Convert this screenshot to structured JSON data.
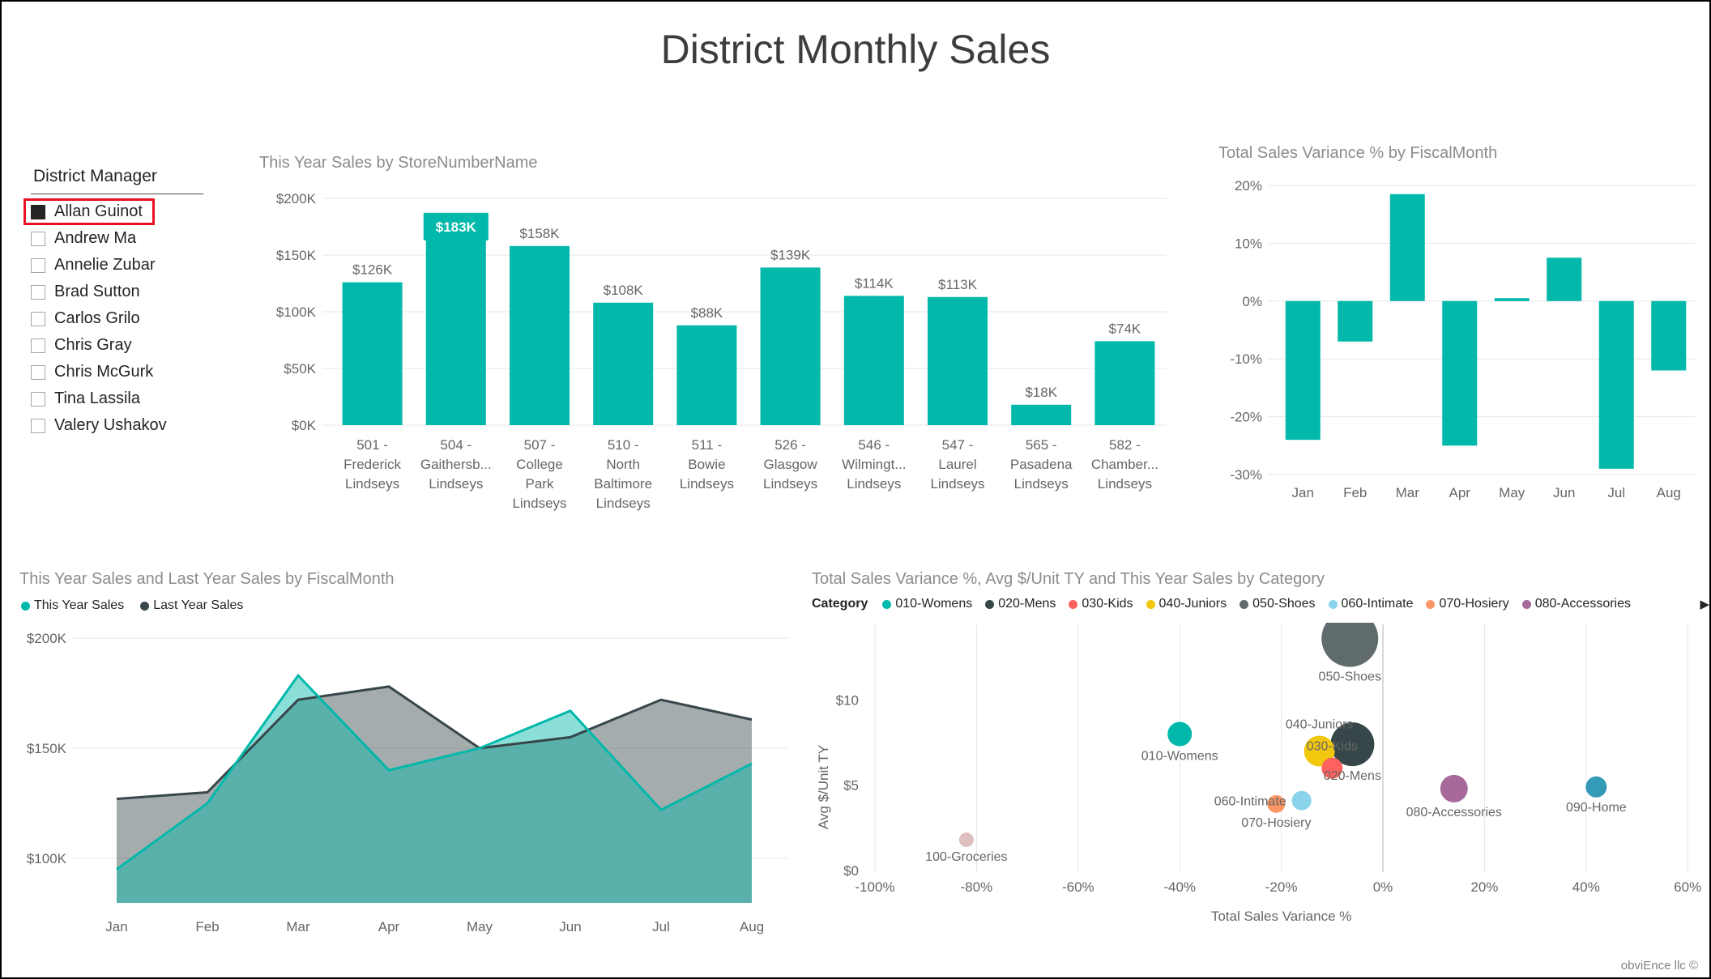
{
  "page": {
    "title": "District Monthly Sales",
    "credit": "obviEnce llc ©"
  },
  "colors": {
    "selection_red": "#E81123",
    "accent_teal": "#01B8AA",
    "dark_gray": "#374649"
  },
  "slicer": {
    "title": "District Manager",
    "items": [
      {
        "label": "Allan Guinot",
        "checked": true,
        "highlighted": true
      },
      {
        "label": "Andrew Ma",
        "checked": false
      },
      {
        "label": "Annelie Zubar",
        "checked": false
      },
      {
        "label": "Brad Sutton",
        "checked": false
      },
      {
        "label": "Carlos Grilo",
        "checked": false
      },
      {
        "label": "Chris Gray",
        "checked": false
      },
      {
        "label": "Chris McGurk",
        "checked": false
      },
      {
        "label": "Tina Lassila",
        "checked": false
      },
      {
        "label": "Valery Ushakov",
        "checked": false
      }
    ]
  },
  "chart_data": [
    {
      "id": "this-year-sales-by-store",
      "type": "bar",
      "title": "This Year Sales by StoreNumberName",
      "categories": [
        [
          "501 -",
          "Frederick",
          "Lindseys"
        ],
        [
          "504 -",
          "Gaithersb...",
          "Lindseys"
        ],
        [
          "507 -",
          "College",
          "Park",
          "Lindseys"
        ],
        [
          "510 -",
          "North",
          "Baltimore",
          "Lindseys"
        ],
        [
          "511 -",
          "Bowie",
          "Lindseys"
        ],
        [
          "526 -",
          "Glasgow",
          "Lindseys"
        ],
        [
          "546 -",
          "Wilmingt...",
          "Lindseys"
        ],
        [
          "547 -",
          "Laurel",
          "Lindseys"
        ],
        [
          "565 -",
          "Pasadena",
          "Lindseys"
        ],
        [
          "582 -",
          "Chamber...",
          "Lindseys"
        ]
      ],
      "values": [
        126,
        183,
        158,
        108,
        88,
        139,
        114,
        113,
        18,
        74
      ],
      "data_labels": [
        "$126K",
        "$183K",
        "$158K",
        "$108K",
        "$88K",
        "$139K",
        "$114K",
        "$113K",
        "$18K",
        "$74K"
      ],
      "highlight_index": 1,
      "ylim": [
        0,
        200
      ],
      "yticks": [
        0,
        50,
        100,
        150,
        200
      ],
      "ytick_labels": [
        "$0K",
        "$50K",
        "$100K",
        "$150K",
        "$200K"
      ],
      "bar_color": "#01B8AA"
    },
    {
      "id": "total-sales-variance-by-fiscalmonth",
      "type": "bar",
      "title": "Total Sales Variance % by FiscalMonth",
      "categories": [
        "Jan",
        "Feb",
        "Mar",
        "Apr",
        "May",
        "Jun",
        "Jul",
        "Aug"
      ],
      "values": [
        -24,
        -7,
        18.5,
        -25,
        0.5,
        7.5,
        -29,
        -12
      ],
      "ylim": [
        -30,
        20
      ],
      "yticks": [
        20,
        10,
        0,
        -10,
        -20,
        -30
      ],
      "ytick_labels": [
        "20%",
        "10%",
        "0%",
        "-10%",
        "-20%",
        "-30%"
      ],
      "bar_color": "#01B8AA"
    },
    {
      "id": "this-year-and-last-year-sales-by-fiscalmonth",
      "type": "area",
      "title": "This Year Sales and Last Year Sales by FiscalMonth",
      "categories": [
        "Jan",
        "Feb",
        "Mar",
        "Apr",
        "May",
        "Jun",
        "Jul",
        "Aug"
      ],
      "series": [
        {
          "name": "This Year Sales",
          "color": "#01B8AA",
          "values": [
            95,
            125,
            183,
            140,
            150,
            167,
            122,
            143
          ]
        },
        {
          "name": "Last Year Sales",
          "color": "#374649",
          "values": [
            127,
            130,
            172,
            178,
            150,
            155,
            172,
            163
          ]
        }
      ],
      "ylim": [
        80,
        200
      ],
      "yticks": [
        200,
        150,
        100
      ],
      "ytick_labels": [
        "$200K",
        "$150K",
        "$100K"
      ]
    },
    {
      "id": "variance-avg-unit-sales-by-category",
      "type": "scatter",
      "title": "Total Sales Variance %, Avg $/Unit TY and This Year Sales by Category",
      "xlabel": "Total Sales Variance %",
      "ylabel": "Avg $/Unit TY",
      "xlim": [
        -100,
        60
      ],
      "xticks": [
        -100,
        -80,
        -60,
        -40,
        -20,
        0,
        20,
        40,
        60
      ],
      "xtick_labels": [
        "-100%",
        "-80%",
        "-60%",
        "-40%",
        "-20%",
        "0%",
        "20%",
        "40%",
        "60%"
      ],
      "yticks": [
        0,
        5,
        10
      ],
      "ytick_labels": [
        "$0",
        "$5",
        "$10"
      ],
      "legend_title": "Category",
      "legend": [
        "010-Womens",
        "020-Mens",
        "030-Kids",
        "040-Juniors",
        "050-Shoes",
        "060-Intimate",
        "070-Hosiery",
        "080-Accessories"
      ],
      "legend_colors": [
        "#01B8AA",
        "#374649",
        "#FD625E",
        "#F2C80F",
        "#5F6B6D",
        "#8AD4EB",
        "#FE9666",
        "#A66999"
      ],
      "points": [
        {
          "name": "050-Shoes",
          "x": -6.5,
          "y": 13.6,
          "r": 35,
          "color": "#5F6B6D",
          "label": "below"
        },
        {
          "name": "020-Mens",
          "x": -6,
          "y": 7.4,
          "r": 27,
          "color": "#374649",
          "label": "below"
        },
        {
          "name": "010-Womens",
          "x": -40,
          "y": 8,
          "r": 15,
          "color": "#01B8AA",
          "label": "below"
        },
        {
          "name": "040-Juniors",
          "x": -12.5,
          "y": 7,
          "r": 19,
          "color": "#F2C80F",
          "label": "above"
        },
        {
          "name": "030-Kids",
          "x": -10,
          "y": 6,
          "r": 13,
          "color": "#FD625E",
          "label": "above"
        },
        {
          "name": "060-Intimate",
          "x": -16,
          "y": 4.1,
          "r": 12,
          "color": "#8AD4EB",
          "label": "left"
        },
        {
          "name": "070-Hosiery",
          "x": -21,
          "y": 3.9,
          "r": 11,
          "color": "#FE9666",
          "label": "below"
        },
        {
          "name": "080-Accessories",
          "x": 14,
          "y": 4.8,
          "r": 17,
          "color": "#A66999",
          "label": "below"
        },
        {
          "name": "090-Home",
          "x": 42,
          "y": 4.9,
          "r": 13,
          "color": "#3599B8",
          "label": "below"
        },
        {
          "name": "100-Groceries",
          "x": -82,
          "y": 1.8,
          "r": 9,
          "color": "#DFBFBF",
          "label": "below"
        }
      ]
    }
  ]
}
